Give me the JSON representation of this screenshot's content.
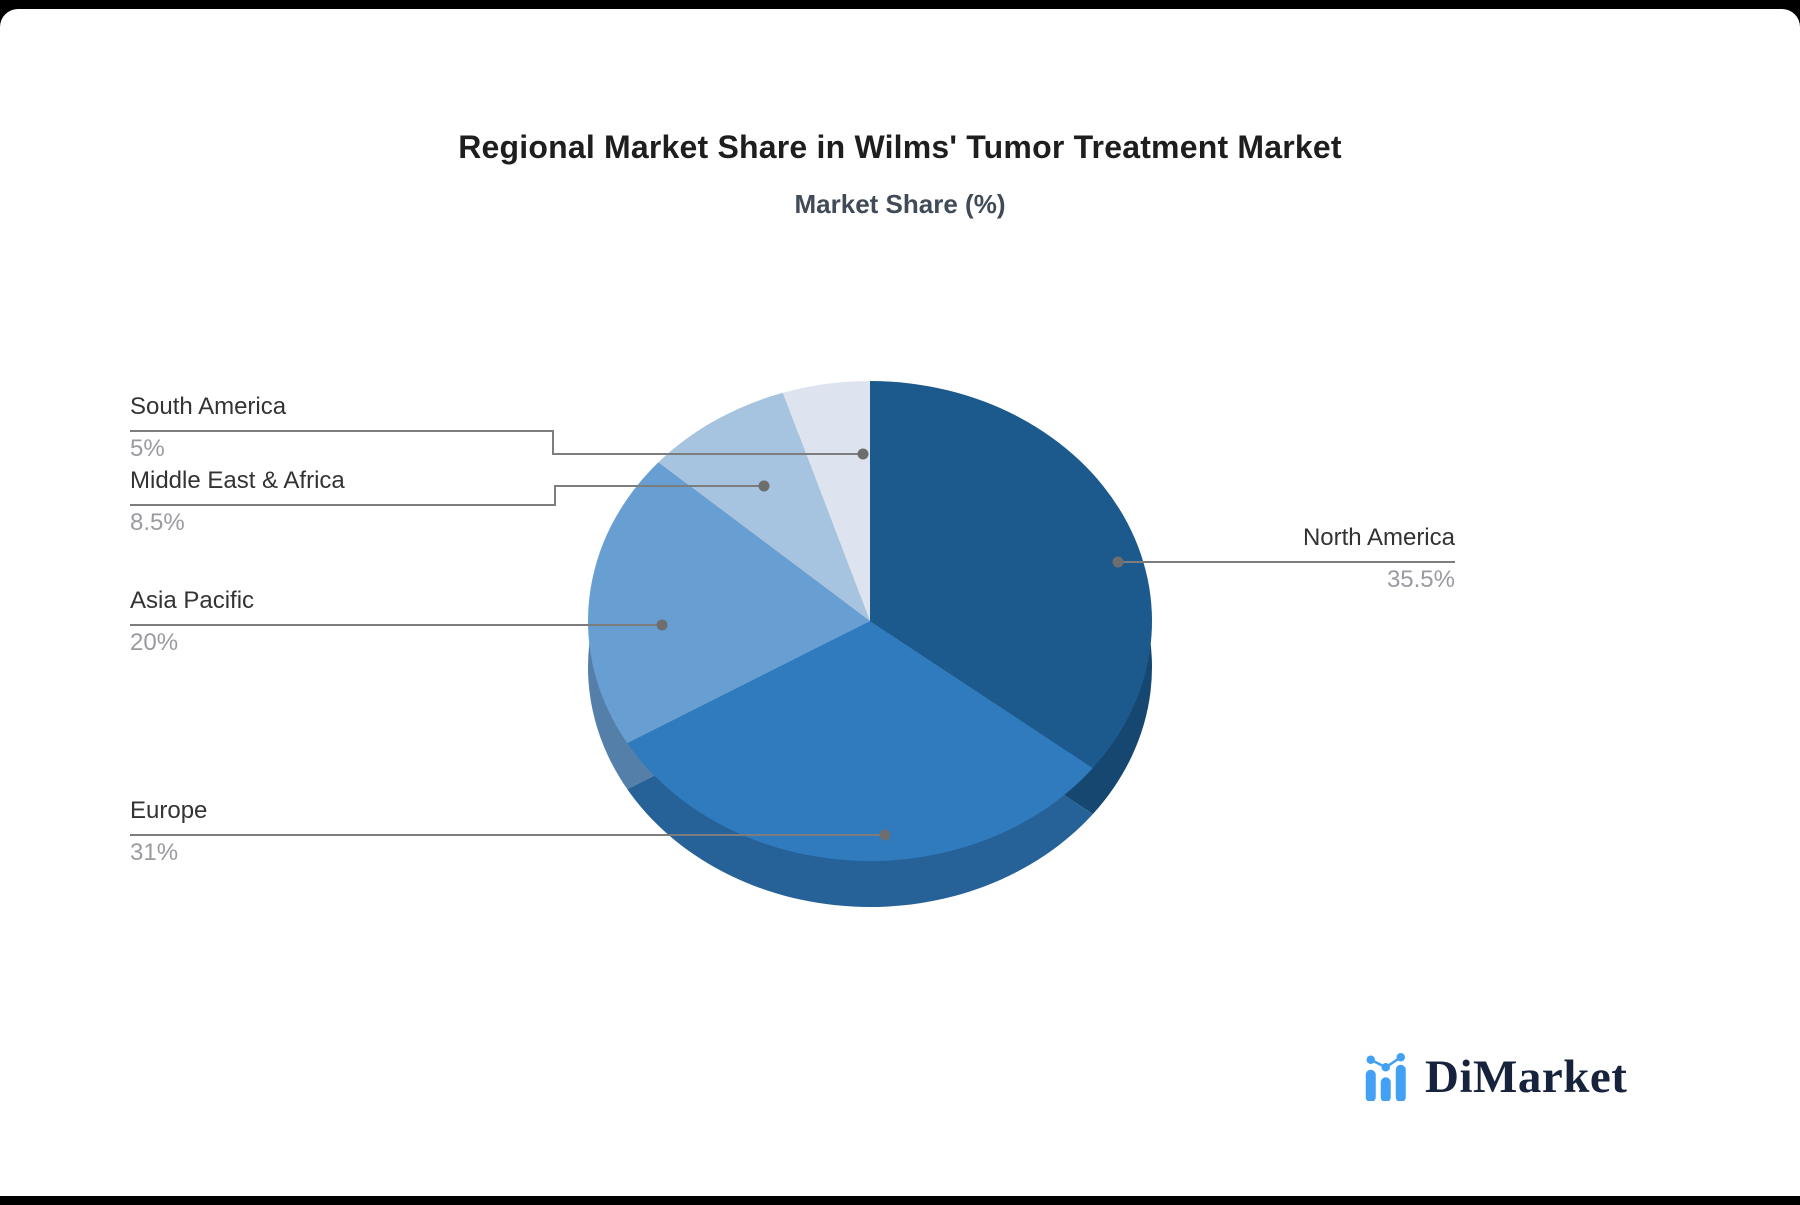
{
  "title": "Regional Market Share in Wilms' Tumor Treatment Market",
  "subtitle": "Market Share (%)",
  "chart_data": {
    "type": "pie",
    "title": "Regional Market Share in Wilms' Tumor Treatment Market",
    "subtitle": "Market Share (%)",
    "unit": "%",
    "style": "3d-pie",
    "start_angle_deg": 0,
    "direction": "clockwise",
    "slices": [
      {
        "label": "North America",
        "value": 35.5,
        "display": "35.5%",
        "color": "#1C598C"
      },
      {
        "label": "Europe",
        "value": 31,
        "display": "31%",
        "color": "#2F7BBE"
      },
      {
        "label": "Asia Pacific",
        "value": 20,
        "display": "20%",
        "color": "#689FD3"
      },
      {
        "label": "Middle East & Africa",
        "value": 8.5,
        "display": "8.5%",
        "color": "#A6C3E0"
      },
      {
        "label": "South America",
        "value": 5,
        "display": "5%",
        "color": "#DEE4EF"
      }
    ]
  },
  "logo": {
    "text": "DiMarket",
    "icon": "bar-line-chart-icon",
    "bar_color": "#42A0F5",
    "text_color": "#17233c"
  },
  "colors": {
    "leader_line": "#7d7d7d",
    "leader_dot": "#6e6e6e",
    "label_name": "#333333",
    "label_value": "#9a9aa0",
    "title": "#1e1e1e",
    "subtitle": "#414b58",
    "background": "#ffffff"
  }
}
